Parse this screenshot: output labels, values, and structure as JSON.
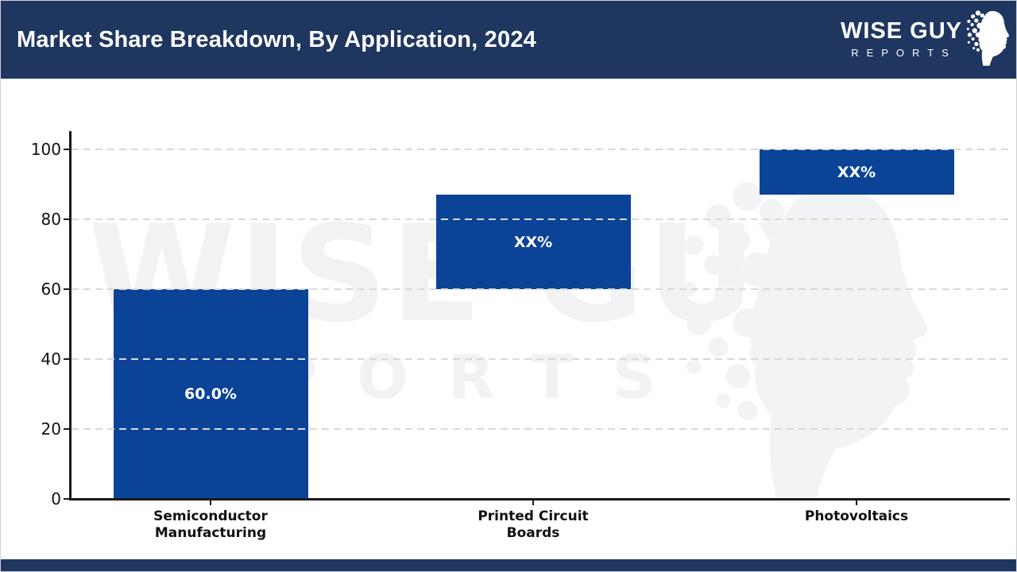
{
  "header": {
    "title": "Market Share Breakdown, By Application, 2024",
    "brand": {
      "line1": "WISE GUY",
      "line2": "REPORTS"
    }
  },
  "watermark": {
    "line1": "WISE GUY",
    "line2": "REPORTS"
  },
  "colors": {
    "header_navy": "#1f3660",
    "bar_blue": "#0b4397",
    "gridline_gray": "#d9d9d9",
    "axis_black": "#1a1a1a",
    "watermark_gray": "#f2f2f2"
  },
  "chart_data": {
    "type": "bar",
    "subtype": "waterfall",
    "title": "Market Share Breakdown, By Application, 2024",
    "categories": [
      "Semiconductor\nManufacturing",
      "Printed Circuit\nBoards",
      "Photovoltaics"
    ],
    "segments": [
      {
        "category": "Semiconductor Manufacturing",
        "from": 0,
        "to": 60,
        "value": 60.0,
        "label": "60.0%"
      },
      {
        "category": "Printed Circuit Boards",
        "from": 60,
        "to": 87,
        "value": 27.0,
        "label": "XX%"
      },
      {
        "category": "Photovoltaics",
        "from": 87,
        "to": 100,
        "value": 13.0,
        "label": "XX%"
      }
    ],
    "displayed_values": [
      "60.0%",
      "XX%",
      "XX%"
    ],
    "xlabel": "",
    "ylabel": "",
    "ylim": [
      0,
      100
    ],
    "yticks": [
      0,
      20,
      40,
      60,
      80,
      100
    ],
    "grid": "horizontal-dashed",
    "legend": "none",
    "bar_color": "#0b4397"
  }
}
